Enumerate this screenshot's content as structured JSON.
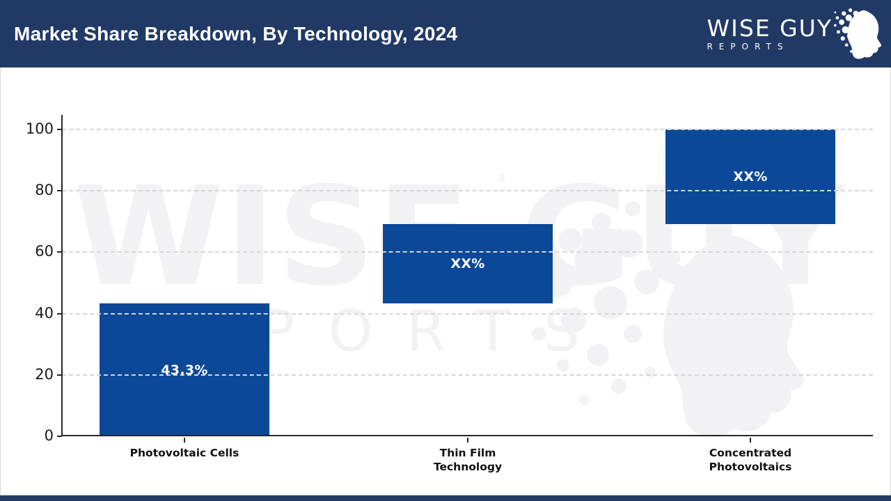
{
  "header": {
    "title": "Market Share Breakdown, By Technology, 2024",
    "brand": {
      "name": "WISE GUY",
      "sub": "REPORTS"
    }
  },
  "watermark": {
    "line1": "WISE GUY",
    "line2": "REPORTS"
  },
  "chart_data": {
    "type": "bar",
    "subtype": "waterfall-stacked-steps",
    "title": "Market Share Breakdown, By Technology, 2024",
    "categories": [
      [
        "Photovoltaic Cells"
      ],
      [
        "Thin Film",
        "Technology"
      ],
      [
        "Concentrated",
        "Photovoltaics"
      ]
    ],
    "segments": [
      {
        "start": 0,
        "end": 43.3,
        "label": "43.3%"
      },
      {
        "start": 43.3,
        "end": 69.2,
        "label": "XX%"
      },
      {
        "start": 69.2,
        "end": 100,
        "label": "XX%"
      }
    ],
    "values": [
      43.3,
      25.9,
      30.8
    ],
    "unit": "%",
    "ylim": [
      0,
      100
    ],
    "yticks": [
      0,
      20,
      40,
      60,
      80,
      100
    ],
    "xlabel": "",
    "ylabel": "",
    "grid": "dashed-horizontal",
    "legend": "none",
    "bar_color": "#0b4898",
    "bar_label_color": "#ffffff",
    "axis_color": "#262626",
    "gridline_color": "#d6d6d6"
  },
  "colors": {
    "header_bg": "#213965",
    "footer_bg": "#213965",
    "watermark": "#f2f2f4",
    "card_border": "#d9d9d9"
  }
}
